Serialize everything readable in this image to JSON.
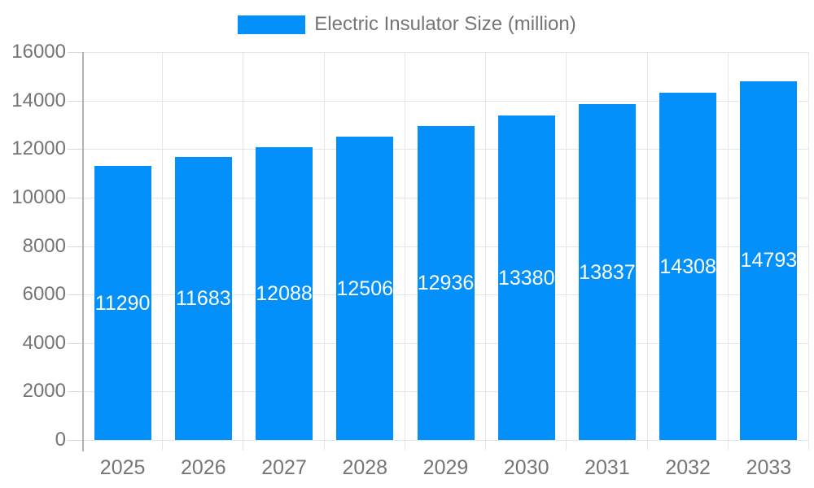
{
  "legend": {
    "label": "Electric Insulator Size (million)",
    "swatch_color": "#0390fa"
  },
  "chart_data": {
    "type": "bar",
    "title": "Electric Insulator Size (million)",
    "xlabel": "",
    "ylabel": "",
    "categories": [
      "2025",
      "2026",
      "2027",
      "2028",
      "2029",
      "2030",
      "2031",
      "2032",
      "2033"
    ],
    "values": [
      11290,
      11683,
      12088,
      12506,
      12936,
      13380,
      13837,
      14308,
      14793
    ],
    "value_labels": [
      "11290",
      "11683",
      "12088",
      "12506",
      "12936",
      "13380",
      "13837",
      "14308",
      "14793"
    ],
    "ylim": [
      0,
      16000
    ],
    "ytick_step": 2000,
    "yticks": [
      "0",
      "2000",
      "4000",
      "6000",
      "8000",
      "10000",
      "12000",
      "14000",
      "16000"
    ],
    "grid": "both",
    "legend_position": "top",
    "bar_color": "#0390fa",
    "value_label_color": "#ffffff"
  },
  "colors": {
    "background": "#ffffff",
    "bar": "#0390fa",
    "grid": "#e6e6e6",
    "tick": "#d9d9d9",
    "axis_line": "#b3b3b3",
    "axis_text": "#757575",
    "value_label": "#ffffff"
  }
}
